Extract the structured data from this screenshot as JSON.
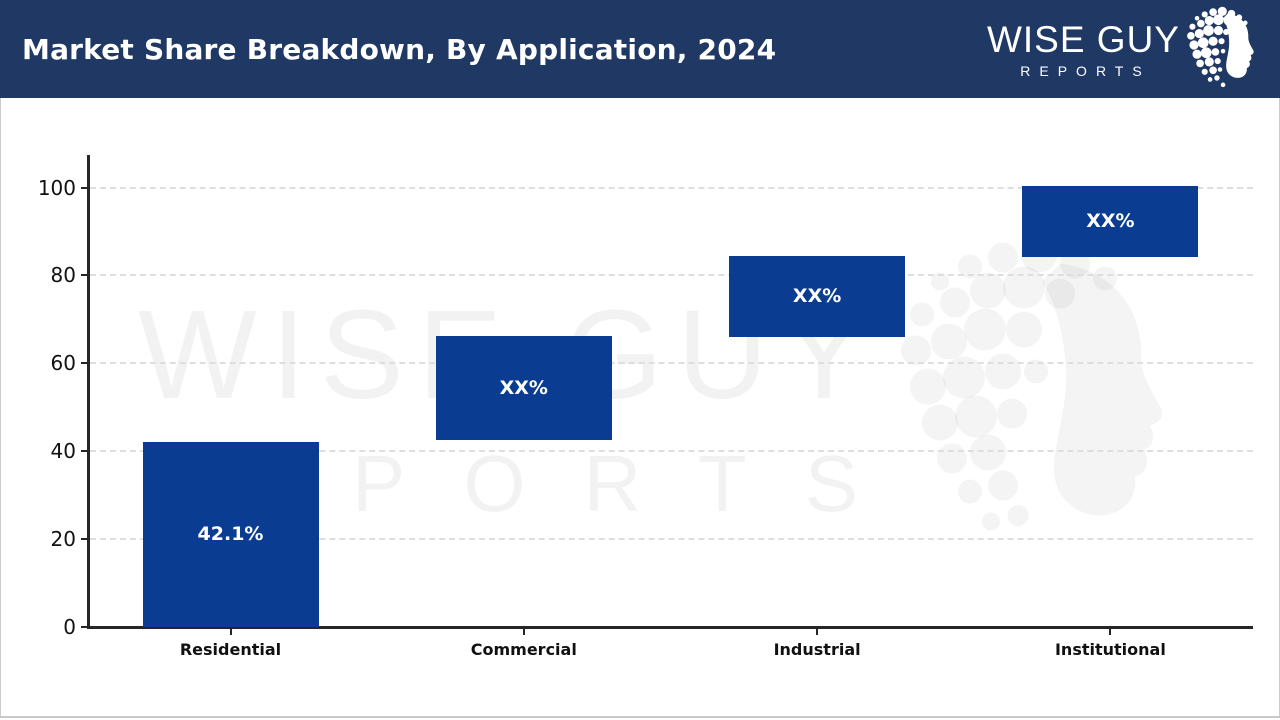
{
  "header": {
    "title": "Market Share Breakdown, By Application, 2024",
    "bg_color": "#1f3864",
    "logo": {
      "brand_line1": "WISE GUY",
      "brand_line2": "REPORTS"
    }
  },
  "watermark": {
    "line1": "WISE GUY",
    "line2": "PORTS"
  },
  "chart_data": {
    "type": "bar",
    "subtype": "waterfall",
    "title": "Market Share Breakdown, By Application, 2024",
    "xlabel": "",
    "ylabel": "",
    "ylim": [
      0,
      107
    ],
    "yticks": [
      0,
      20,
      40,
      60,
      80,
      100
    ],
    "grid": "horizontal-dashed",
    "legend": "none",
    "bar_color": "#0a3d91",
    "bar_label_color": "#ffffff",
    "categories": [
      "Residential",
      "Commercial",
      "Industrial",
      "Institutional"
    ],
    "segments": [
      {
        "category": "Residential",
        "start": 0,
        "end": 42.1,
        "label": "42.1%"
      },
      {
        "category": "Commercial",
        "start": 42.6,
        "end": 66.3,
        "label": "XX%"
      },
      {
        "category": "Industrial",
        "start": 66.1,
        "end": 84.4,
        "label": "XX%"
      },
      {
        "category": "Institutional",
        "start": 84.3,
        "end": 100.3,
        "label": "XX%"
      }
    ]
  }
}
